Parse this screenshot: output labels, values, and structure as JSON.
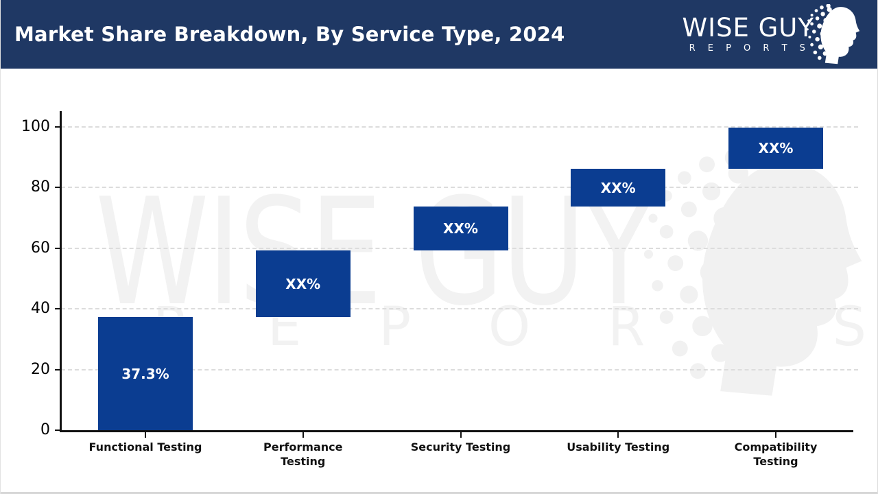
{
  "header": {
    "title": "Market Share Breakdown, By Service Type, 2024",
    "logo": {
      "line1": "WISE GUY",
      "line2": "R E P O R T S"
    }
  },
  "watermark": {
    "line1": "WISE GUY",
    "line2": "R E P O R T S"
  },
  "chart_data": {
    "type": "bar",
    "subtype": "waterfall",
    "title": "Market Share Breakdown, By Service Type, 2024",
    "categories": [
      "Functional Testing",
      "Performance\nTesting",
      "Security Testing",
      "Usability Testing",
      "Compatibility\nTesting"
    ],
    "segments": [
      {
        "category": "Functional Testing",
        "start": 0,
        "end": 37.3,
        "label": "37.3%"
      },
      {
        "category": "Performance Testing",
        "start": 37.3,
        "end": 59.2,
        "label": "XX%"
      },
      {
        "category": "Security Testing",
        "start": 59.2,
        "end": 73.8,
        "label": "XX%"
      },
      {
        "category": "Usability Testing",
        "start": 73.8,
        "end": 86.1,
        "label": "XX%"
      },
      {
        "category": "Compatibility Testing",
        "start": 86.1,
        "end": 99.8,
        "label": "XX%"
      }
    ],
    "yticks": [
      0,
      20,
      40,
      60,
      80,
      100
    ],
    "ylim": [
      0,
      105
    ],
    "xlabel": "",
    "ylabel": "",
    "grid": "horizontal-dashed",
    "legend": "none",
    "bar_color": "#0b3d91",
    "value_label_color": "#ffffff"
  },
  "colors": {
    "header_bg": "#1f3864",
    "bar": "#0b3d91",
    "axis": "#111111",
    "grid": "#dcdcdc",
    "watermark": "#f2f2f2",
    "bottom_rule": "#d7d7d7"
  }
}
